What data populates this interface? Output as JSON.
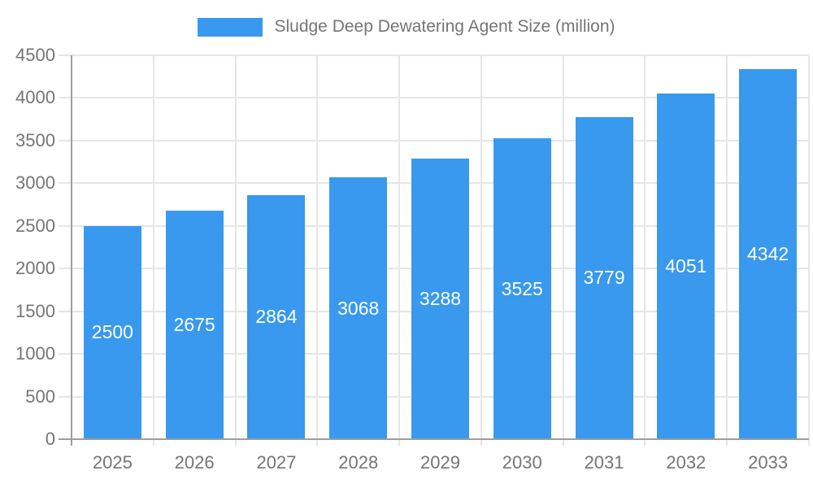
{
  "chart_data": {
    "type": "bar",
    "title": "Sludge Deep Dewatering Agent Size (million)",
    "categories": [
      "2025",
      "2026",
      "2027",
      "2028",
      "2029",
      "2030",
      "2031",
      "2032",
      "2033"
    ],
    "values": [
      2500,
      2675,
      2864,
      3068,
      3288,
      3525,
      3779,
      4051,
      4342
    ],
    "xlabel": "",
    "ylabel": "",
    "ylim": [
      0,
      4500
    ],
    "y_ticks": [
      0,
      500,
      1000,
      1500,
      2000,
      2500,
      3000,
      3500,
      4000,
      4500
    ],
    "grid": true,
    "legend_position": "top-center",
    "value_labels": "centered-in-bar",
    "colors": {
      "bar": "#3899ee",
      "bar_label": "#ffffff",
      "axis_text": "#757575",
      "axis_line": "#9e9e9e",
      "gridline": "#e6e6e6"
    }
  }
}
